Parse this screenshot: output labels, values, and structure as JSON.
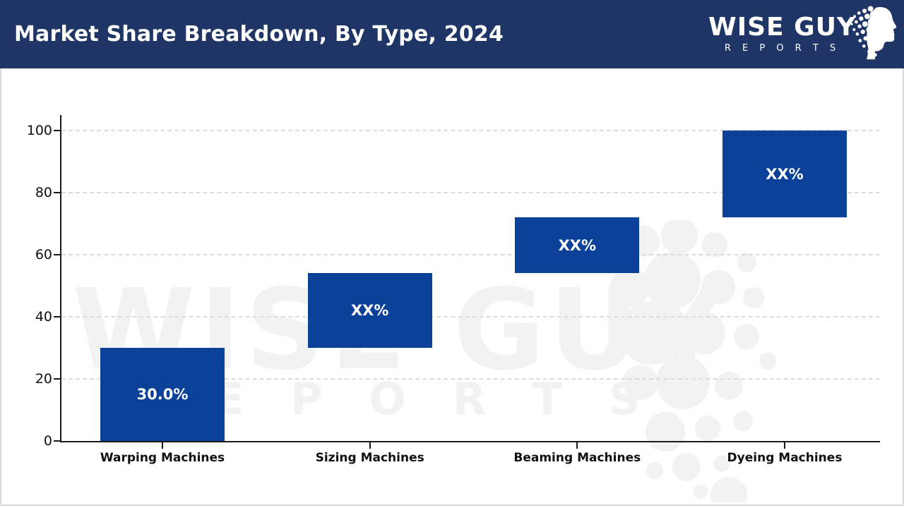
{
  "header": {
    "title": "Market Share Breakdown, By Type, 2024",
    "logo": {
      "wordmark": "WISE GUY",
      "subtext": "R E P O R T S"
    }
  },
  "watermark": {
    "line1": "WISE GUY",
    "line2": "R E P O R T S"
  },
  "chart_data": {
    "type": "bar",
    "subtype": "waterfall-floating-bars",
    "title": "Market Share Breakdown, By Type, 2024",
    "categories": [
      "Warping Machines",
      "Sizing Machines",
      "Beaming Machines",
      "Dyeing Machines"
    ],
    "segments": [
      {
        "category": "Warping Machines",
        "start": 0,
        "end": 30,
        "label": "30.0%"
      },
      {
        "category": "Sizing Machines",
        "start": 30,
        "end": 54,
        "label": "XX%"
      },
      {
        "category": "Beaming Machines",
        "start": 54,
        "end": 72,
        "label": "XX%"
      },
      {
        "category": "Dyeing Machines",
        "start": 72,
        "end": 100,
        "label": "XX%"
      }
    ],
    "xlabel": "",
    "ylabel": "",
    "yticks": [
      0,
      20,
      40,
      60,
      80,
      100
    ],
    "ylim": [
      0,
      105
    ],
    "grid": {
      "horizontal": true,
      "style": "dashed",
      "color": "#dcdcdc"
    },
    "legend": "none",
    "colors": {
      "bar": "#0c419a",
      "header_bg": "#1e3565",
      "axis": "#1a1a1a",
      "value_label": "#ffffff",
      "watermark": "#f2f2f2"
    }
  }
}
